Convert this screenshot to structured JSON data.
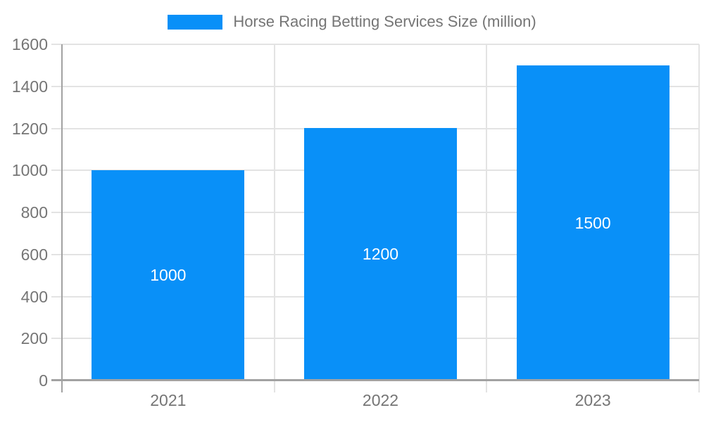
{
  "chart_data": {
    "type": "bar",
    "title": "",
    "legend": "Horse Racing Betting Services Size (million)",
    "legend_position": "top-center",
    "categories": [
      "2021",
      "2022",
      "2023"
    ],
    "values": [
      1000,
      1200,
      1500
    ],
    "xlabel": "",
    "ylabel": "",
    "ylim": [
      0,
      1600
    ],
    "yticks": [
      0,
      200,
      400,
      600,
      800,
      1000,
      1200,
      1400,
      1600
    ],
    "grid": true,
    "bar_value_labels_inside": true,
    "colors": {
      "bar": "#0990F8",
      "grid": "#e3e3e3",
      "axis": "#a2a2a2",
      "tick_text": "#757575",
      "bar_label_text": "#ffffff"
    }
  }
}
